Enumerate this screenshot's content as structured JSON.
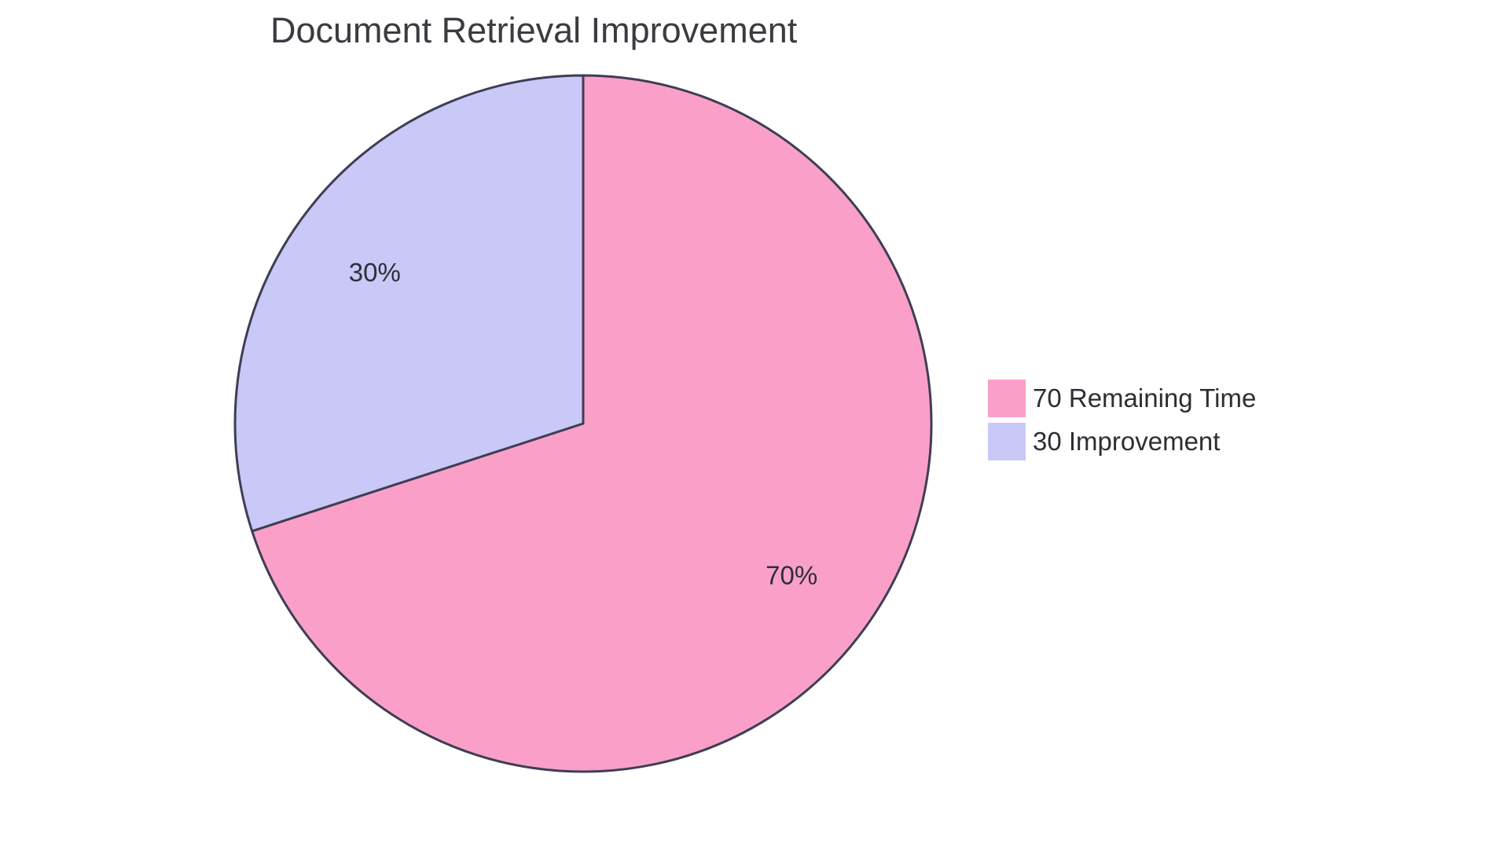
{
  "page": {
    "background_color": "#FFFFFF"
  },
  "chart_data": {
    "type": "pie",
    "title": "Document Retrieval Improvement",
    "direction": "clockwise",
    "start_angle": "top",
    "slices": [
      {
        "id": "remaining-time",
        "label": "70 Remaining Time",
        "value": 70,
        "percent_label": "70%",
        "color": "#FAA0C8"
      },
      {
        "id": "improvement",
        "label": "30 Improvement",
        "value": 30,
        "percent_label": "30%",
        "color": "#CAC8F6"
      }
    ],
    "stroke_color": "#3E3E54",
    "stroke_width": 3,
    "title_color": "#3B3B41",
    "slice_label_color": "#2E2E38",
    "legend_position": "right",
    "legend_text_color": "#2D2D33"
  }
}
